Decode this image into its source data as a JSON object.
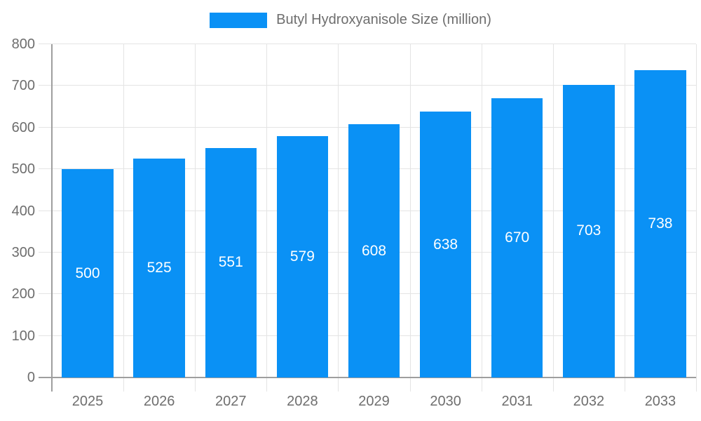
{
  "legend": {
    "label": "Butyl Hydroxyanisole Size (million)"
  },
  "colors": {
    "bar": "#0a91f5",
    "grid": "#e4e4e4",
    "axis": "#9e9e9e",
    "tick_text": "#6e6e6e",
    "bar_label_text": "#ffffff",
    "background": "#ffffff"
  },
  "chart_data": {
    "type": "bar",
    "title": "Butyl Hydroxyanisole Size (million)",
    "categories": [
      "2025",
      "2026",
      "2027",
      "2028",
      "2029",
      "2030",
      "2031",
      "2032",
      "2033"
    ],
    "values": [
      500,
      525,
      551,
      579,
      608,
      638,
      670,
      703,
      738
    ],
    "ylim": [
      0,
      800
    ],
    "ytick_step": 100,
    "ytick_labels": [
      "0",
      "100",
      "200",
      "300",
      "400",
      "500",
      "600",
      "700",
      "800"
    ],
    "grid": true,
    "legend_position": "top",
    "bar_label_position": "middle"
  }
}
